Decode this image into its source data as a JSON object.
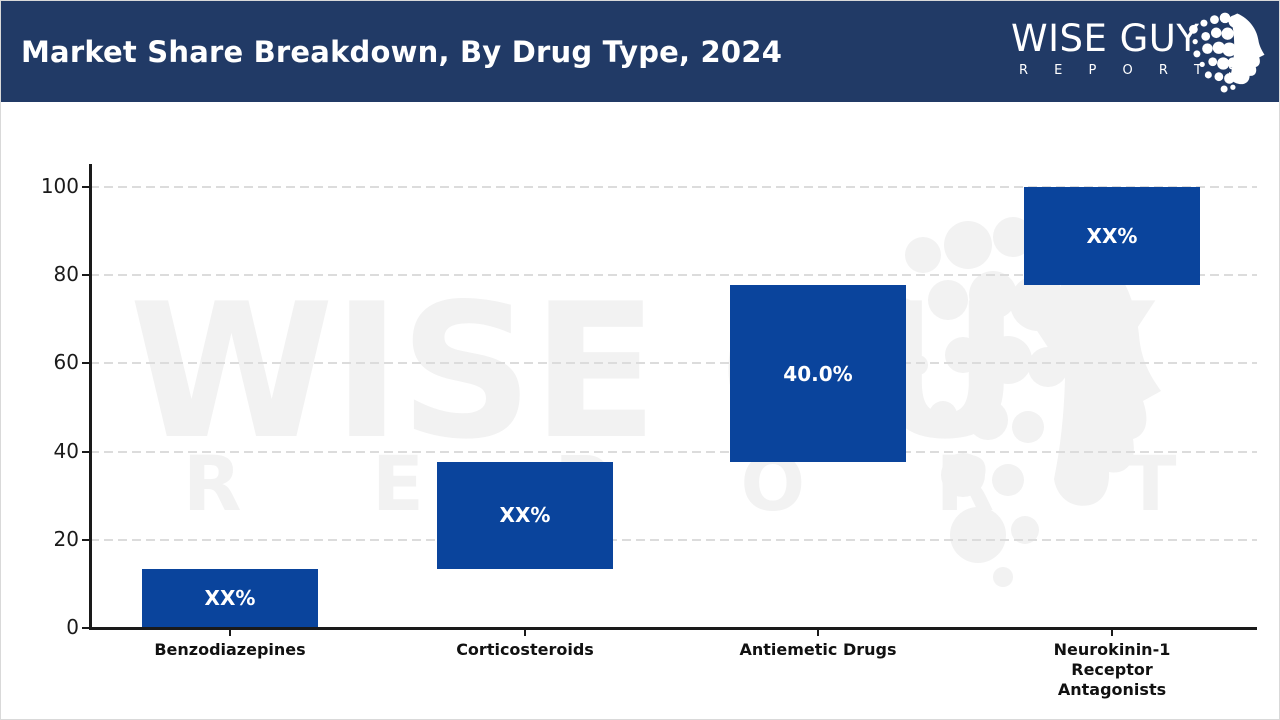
{
  "header": {
    "title": "Market Share Breakdown, By Drug Type, 2024",
    "logo": {
      "line1": "WISE GUY",
      "line2": "R E P O R T S"
    }
  },
  "watermark": {
    "line1": "WISE GUY",
    "line2": "R E P O R T S"
  },
  "chart_data": {
    "type": "bar",
    "subtype": "floating-waterfall",
    "title": "Market Share Breakdown, By Drug Type, 2024",
    "xlabel": "",
    "ylabel": "",
    "ylim": [
      0,
      104
    ],
    "yticks": [
      0,
      20,
      40,
      60,
      80,
      100
    ],
    "grid": "dashed-horizontal",
    "legend": "none",
    "bar_color": "#0a449c",
    "categories": [
      "Benzodiazepines",
      "Corticosteroids",
      "Antiemetic Drugs",
      "Neurokinin-1 Receptor Antagonists"
    ],
    "category_lines": [
      [
        "Benzodiazepines"
      ],
      [
        "Corticosteroids"
      ],
      [
        "Antiemetic Drugs"
      ],
      [
        "Neurokinin-1",
        "Receptor",
        "Antagonists"
      ]
    ],
    "segments": [
      {
        "category": "Benzodiazepines",
        "start": 0,
        "end": 13.4,
        "value_pct": 13.4,
        "label": "XX%"
      },
      {
        "category": "Corticosteroids",
        "start": 13.4,
        "end": 37.7,
        "value_pct": 24.3,
        "label": "XX%"
      },
      {
        "category": "Antiemetic Drugs",
        "start": 37.7,
        "end": 77.7,
        "value_pct": 40.0,
        "label": "40.0%"
      },
      {
        "category": "Neurokinin-1 Receptor Antagonists",
        "start": 77.7,
        "end": 100,
        "value_pct": 22.3,
        "label": "XX%"
      }
    ]
  },
  "colors": {
    "header_bg": "#213a66",
    "bar": "#0a449c",
    "bar_label": "#ffffff",
    "grid": "#dcdcdc",
    "axis": "#1a1a1a",
    "watermark": "#f2f2f2",
    "frame_border": "#d9d9d9"
  }
}
